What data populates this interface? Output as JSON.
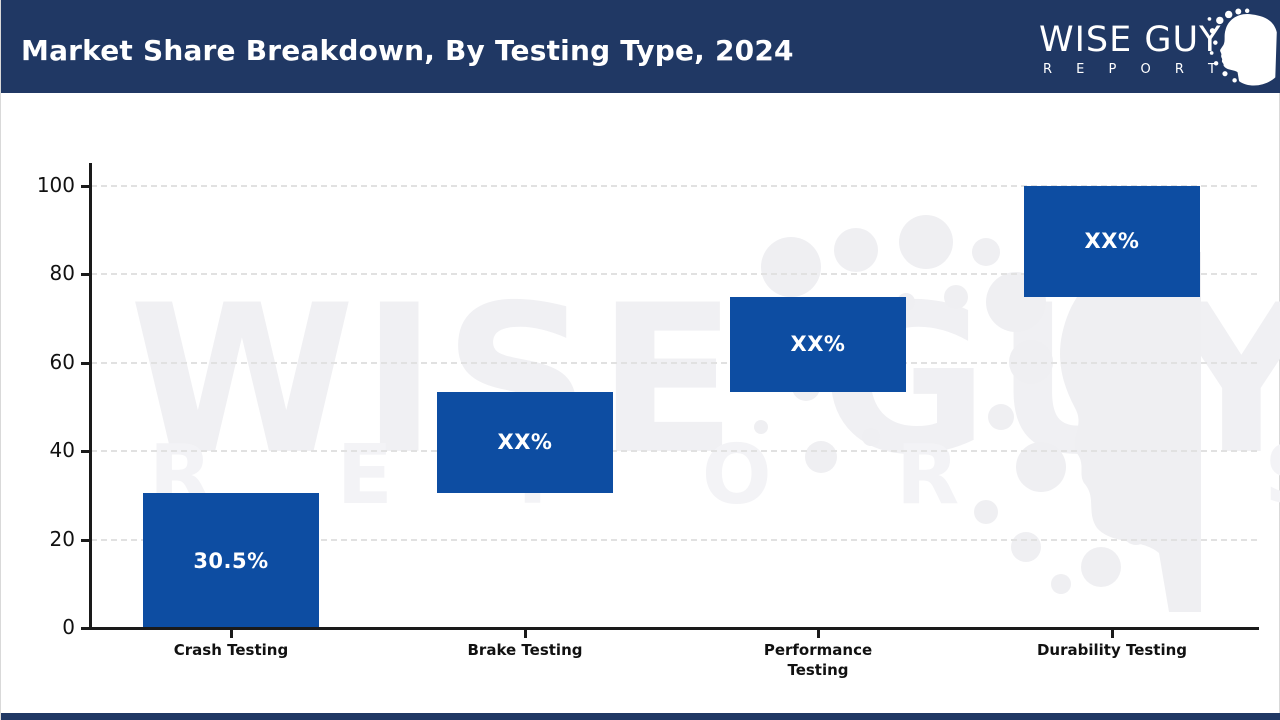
{
  "header": {
    "title": "Market Share Breakdown, By Testing Type, 2024",
    "logo": {
      "wordmark": "WISE GUY",
      "subtext": "REPORTS"
    }
  },
  "watermark": {
    "wordmark": "WISE GUY",
    "subtext": "REPORTS"
  },
  "chart_data": {
    "type": "bar",
    "subtype": "waterfall-floating-bars",
    "title": "Market Share Breakdown, By Testing Type, 2024",
    "categories": [
      "Crash Testing",
      "Brake Testing",
      "Performance Testing",
      "Durability Testing"
    ],
    "category_lines": [
      [
        "Crash Testing"
      ],
      [
        "Brake Testing"
      ],
      [
        "Performance",
        "Testing"
      ],
      [
        "Durability Testing"
      ]
    ],
    "segments": [
      {
        "category": "Crash Testing",
        "label": "30.5%",
        "start": 0,
        "end": 30.5
      },
      {
        "category": "Brake Testing",
        "label": "XX%",
        "start": 30.5,
        "end": 53.5
      },
      {
        "category": "Performance Testing",
        "label": "XX%",
        "start": 53.5,
        "end": 75
      },
      {
        "category": "Durability Testing",
        "label": "XX%",
        "start": 75,
        "end": 100
      }
    ],
    "xlabel": "",
    "ylabel": "",
    "ylim": [
      0,
      100
    ],
    "yticks": [
      0,
      20,
      40,
      60,
      80,
      100
    ],
    "grid": "horizontal-dashed",
    "legend": "none"
  },
  "colors": {
    "header_bg": "#203864",
    "footer_bg": "#203864",
    "bar_fill": "#0d4da2",
    "bar_label_text": "#ffffff",
    "title_text": "#ffffff",
    "axis": "#1a1a1a",
    "gridline": "#e1e1e1",
    "watermark": "#f0f0f3"
  }
}
